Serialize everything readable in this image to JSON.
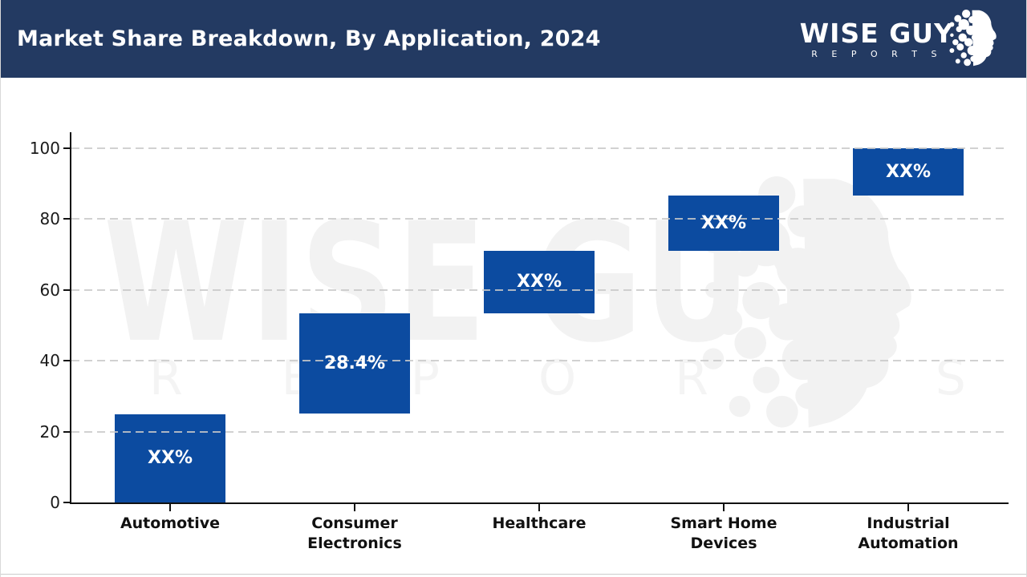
{
  "page": {
    "background": "#ffffff",
    "frame_color": "#d9d9d9"
  },
  "header": {
    "bg_color": "#233a62",
    "title": "Market Share Breakdown, By Application, 2024",
    "logo": {
      "name": "WISE GUY",
      "tagline": "R E P O R T S"
    }
  },
  "watermark": {
    "big_text": "WISE GUY",
    "small_text": "R E P O R T S"
  },
  "chart_data": {
    "type": "bar",
    "variant": "waterfall",
    "title": "Market Share Breakdown, By Application, 2024",
    "categories": [
      "Automotive",
      "Consumer\nElectronics",
      "Healthcare",
      "Smart Home Devices",
      "Industrial\nAutomation"
    ],
    "segments": [
      {
        "category": "Automotive",
        "start": 0,
        "end": 25,
        "label": "XX%"
      },
      {
        "category": "Consumer Electronics",
        "start": 25,
        "end": 53.4,
        "label": "28.4%"
      },
      {
        "category": "Healthcare",
        "start": 53.4,
        "end": 71,
        "label": "XX%"
      },
      {
        "category": "Smart Home Devices",
        "start": 71,
        "end": 86.6,
        "label": "XX%"
      },
      {
        "category": "Industrial Automation",
        "start": 86.6,
        "end": 100,
        "label": "XX%"
      }
    ],
    "yticks": [
      0,
      20,
      40,
      60,
      80,
      100
    ],
    "ylim": [
      0,
      104.5
    ],
    "xlabel": "",
    "ylabel": "",
    "grid": {
      "axis": "y",
      "style": "dashed",
      "color": "#c9c9c9",
      "drawn_above_bars": true
    },
    "legend": false,
    "bar_color": "#0c4ba0",
    "bar_label_color": "#ffffff",
    "axis_color": "#111111",
    "tick_label_color": "#1a1a1a"
  }
}
